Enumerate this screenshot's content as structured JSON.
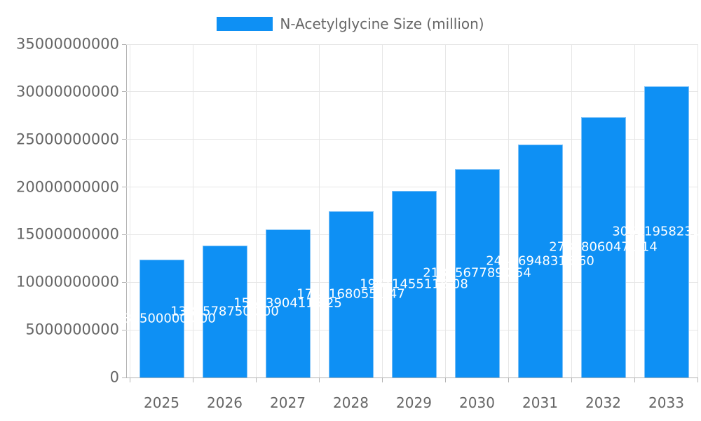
{
  "legend": {
    "label": "N-Acetylglycine Size (million)",
    "swatch_color": "#0e90f4"
  },
  "chart_data": {
    "type": "bar",
    "title": "N-Acetylglycine Size (million)",
    "legend_position": "top",
    "grid": true,
    "xlabel": "",
    "ylabel": "",
    "categories": [
      "2025",
      "2026",
      "2027",
      "2028",
      "2029",
      "2030",
      "2031",
      "2032",
      "2033"
    ],
    "series": [
      {
        "name": "N-Acetylglycine Size (million)",
        "values": [
          12355000000.0,
          13865787500.0,
          15563904115.25,
          17471680551.47,
          19611455118.08,
          21885677890.54,
          24466948316.6,
          27338060471.14,
          30611958231.45
        ]
      }
    ],
    "bar_value_labels": [
      "12355000000.00",
      "13865787500.00",
      "15563904115.25",
      "17471680551.47",
      "19611455118.08",
      "21885677890.54",
      "24466948316.60",
      "27338060471.14",
      "30611958231.45"
    ],
    "ylim": [
      0,
      35000000000
    ],
    "ytick_step": 5000000000,
    "ytick_labels": [
      "0",
      "5000000000",
      "10000000000",
      "15000000000",
      "20000000000",
      "25000000000",
      "30000000000",
      "35000000000"
    ],
    "colors": {
      "bar_fill": "#0e90f4",
      "bar_edge": "#7fc2f8",
      "axis_text": "#666666",
      "gridline": "#e6e6e6",
      "axis_line": "#b3b3b3",
      "datalabel_text": "#ffffff",
      "background": "#ffffff"
    }
  }
}
